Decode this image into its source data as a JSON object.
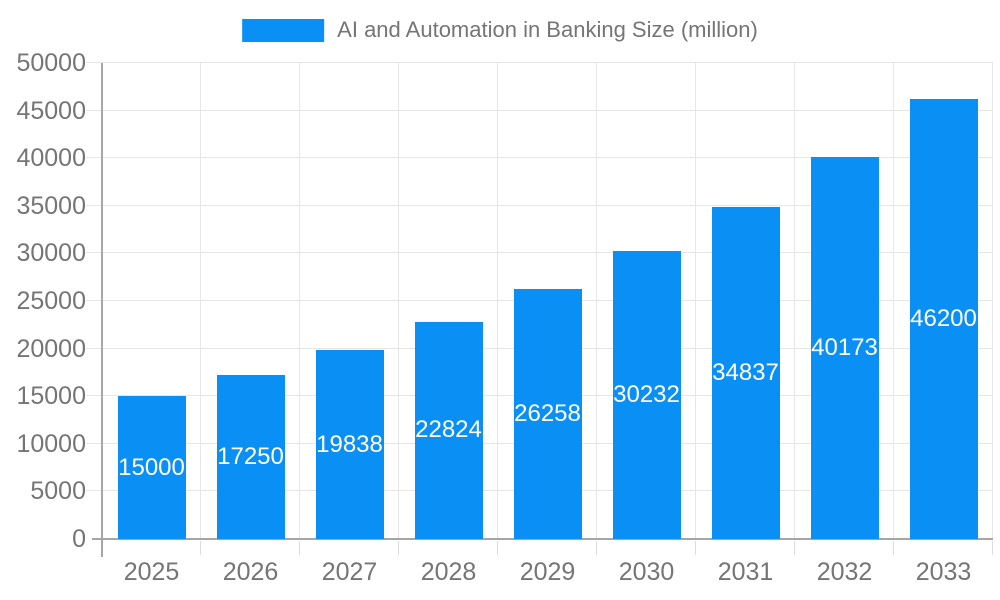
{
  "legend": {
    "label": "AI and Automation in Banking Size (million)"
  },
  "chart_data": {
    "type": "bar",
    "title": "AI and Automation in Banking Size (million)",
    "categories": [
      "2025",
      "2026",
      "2027",
      "2028",
      "2029",
      "2030",
      "2031",
      "2032",
      "2033"
    ],
    "series": [
      {
        "name": "AI and Automation in Banking Size (million)",
        "values": [
          15000,
          17250,
          19838,
          22824,
          26258,
          30232,
          34837,
          40173,
          46200
        ]
      }
    ],
    "values": [
      15000,
      17250,
      19838,
      22824,
      26258,
      30232,
      34837,
      40173,
      46200
    ],
    "value_labels": [
      "15000",
      "17250",
      "19838",
      "22824",
      "26258",
      "30232",
      "34837",
      "40173",
      "46200"
    ],
    "xlabel": "",
    "ylabel": "",
    "ylim": [
      0,
      50000
    ],
    "ytick_step": 5000,
    "yticks": [
      0,
      5000,
      10000,
      15000,
      20000,
      25000,
      30000,
      35000,
      40000,
      45000,
      50000
    ],
    "grid": "horizontal gridlines each 5000 + vertical gridlines at category boundaries",
    "legend_position": "top-center",
    "value_label_position": "inside bar, centered",
    "colors": {
      "bar": "#0a8ff5",
      "value_label": "#ffffff",
      "axis_text": "#757575",
      "legend_text": "#757575",
      "gridline": "#e6e6e6",
      "axis_line": "#a6a6a6",
      "background": "#ffffff"
    }
  }
}
